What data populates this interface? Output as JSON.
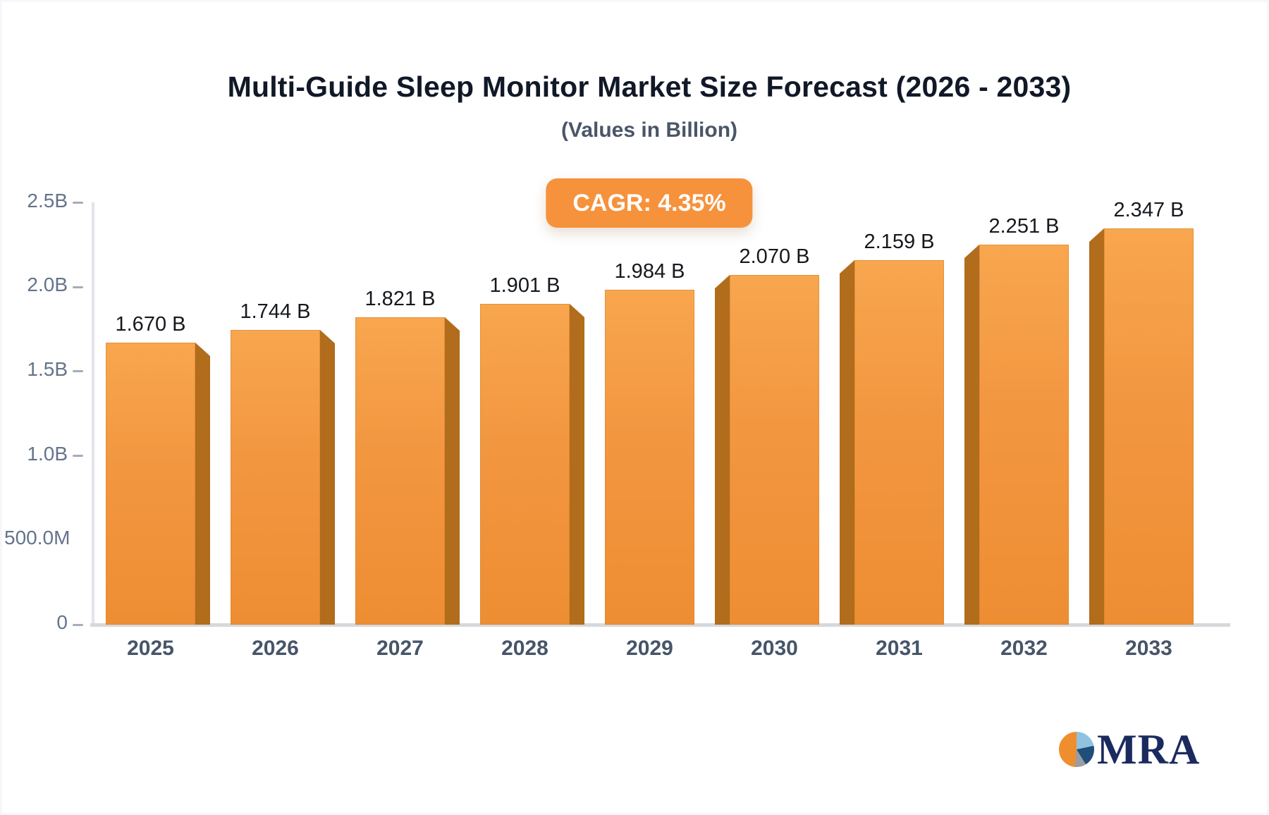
{
  "page": {
    "title": "Multi-Guide Sleep Monitor Market Size Forecast (2026 - 2033)",
    "subtitle": "(Values in Billion)",
    "cagr_badge": "CAGR: 4.35%",
    "logo_text": "MRA"
  },
  "colors": {
    "title_text": "#111827",
    "subtitle_text": "#4a5568",
    "badge_bg": "#f6923c",
    "badge_text": "#ffffff",
    "bar_face_top": "#f8a64f",
    "bar_face_mid": "#f29640",
    "bar_face_bottom": "#ee8e33",
    "bar_side": "#b16c1c",
    "value_label": "#15181d",
    "year_label": "#475569",
    "axis_label": "#64748b",
    "axis_line": "#e2e4e9",
    "axis_line_dark": "#d6d8dc",
    "logo_navy": "#1b2a5e",
    "pie_orange": "#ef8e2e",
    "pie_lightblue": "#8fc3de",
    "pie_navy": "#1f4e79",
    "pie_gray": "#9b9da0"
  },
  "chart_data": {
    "type": "bar",
    "title": "Multi-Guide Sleep Monitor Market Size Forecast (2026 - 2033)",
    "subtitle": "(Values in Billion)",
    "cagr": "4.35%",
    "xlabel": "",
    "ylabel": "",
    "categories": [
      "2025",
      "2026",
      "2027",
      "2028",
      "2029",
      "2030",
      "2031",
      "2032",
      "2033"
    ],
    "values": [
      1.67,
      1.744,
      1.821,
      1.901,
      1.984,
      2.07,
      2.159,
      2.251,
      2.347
    ],
    "value_labels": [
      "1.670 B",
      "1.744 B",
      "1.821 B",
      "1.901 B",
      "1.984 B",
      "2.070 B",
      "2.159 B",
      "2.251 B",
      "2.347 B"
    ],
    "ylim": [
      0,
      2.5
    ],
    "y_ticks": [
      {
        "label": "0",
        "value": 0,
        "dash": true
      },
      {
        "label": "500.0M",
        "value": 0.5,
        "dash": false
      },
      {
        "label": "1.0B",
        "value": 1.0,
        "dash": true
      },
      {
        "label": "1.5B",
        "value": 1.5,
        "dash": true
      },
      {
        "label": "2.0B",
        "value": 2.0,
        "dash": true
      },
      {
        "label": "2.5B",
        "value": 2.5,
        "dash": true
      }
    ],
    "grid": false,
    "legend": "none",
    "bar_style": "3d-beveled-orange"
  }
}
